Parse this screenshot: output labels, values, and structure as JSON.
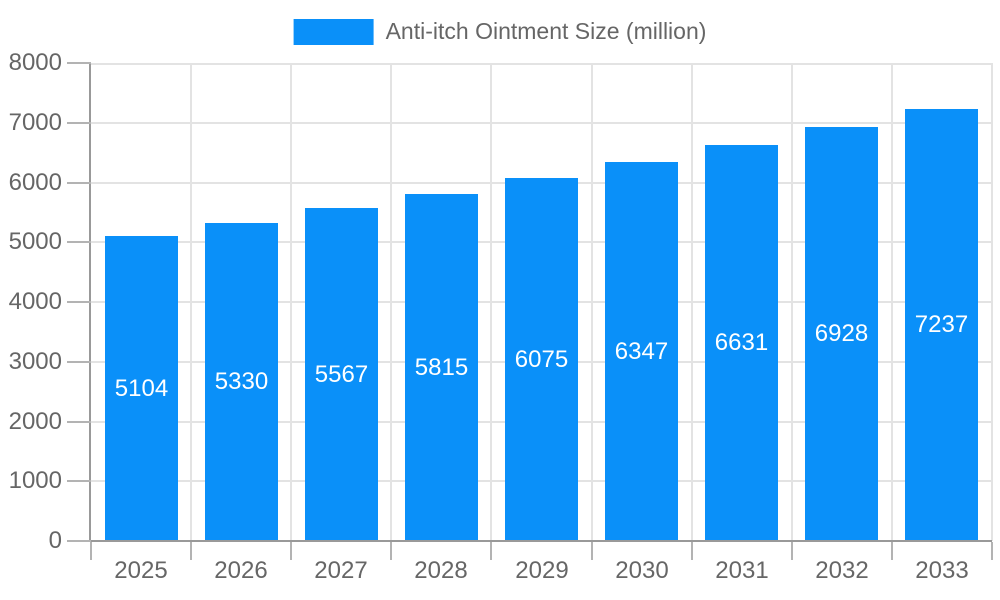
{
  "chart_data": {
    "type": "bar",
    "title": "Anti-itch Ointment Size (million)",
    "legend_entries": [
      "Anti-itch Ointment Size (million)"
    ],
    "legend_position": "top",
    "categories": [
      "2025",
      "2026",
      "2027",
      "2028",
      "2029",
      "2030",
      "2031",
      "2032",
      "2033"
    ],
    "values": [
      5104,
      5330,
      5567,
      5815,
      6075,
      6347,
      6631,
      6928,
      7237
    ],
    "bar_value_labels": [
      "5104",
      "5330",
      "5567",
      "5815",
      "6075",
      "6347",
      "6631",
      "6928",
      "7237"
    ],
    "xlabel": "",
    "ylabel": "",
    "ylim": [
      0,
      8000
    ],
    "yticks": [
      0,
      1000,
      2000,
      3000,
      4000,
      5000,
      6000,
      7000,
      8000
    ],
    "grid": true,
    "colors": {
      "bar": "#0a90f9",
      "bar_label": "#ffffff",
      "axis_text": "#666666",
      "legend_text": "#666666",
      "grid_line": "#e3e3e3",
      "axis_line": "#999999",
      "tick_mark": "#b3b3b3",
      "background": "#ffffff"
    }
  }
}
